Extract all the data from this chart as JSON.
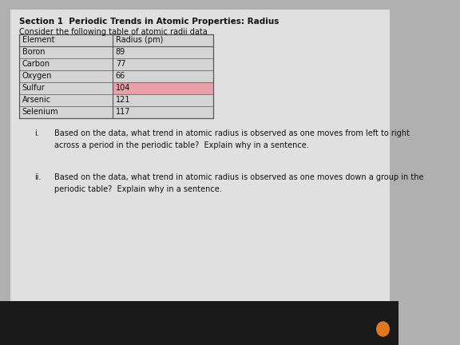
{
  "title": "Section 1  Periodic Trends in Atomic Properties: Radius",
  "subtitle": "Consider the following table of atomic radii data",
  "table_headers": [
    "Element",
    "Radius (pm)"
  ],
  "table_rows": [
    [
      "Boron",
      "89"
    ],
    [
      "Carbon",
      "77"
    ],
    [
      "Oxygen",
      "66"
    ],
    [
      "Sulfur",
      "104"
    ],
    [
      "Arsenic",
      "121"
    ],
    [
      "Selenium",
      "117"
    ]
  ],
  "highlight_row": 3,
  "question_i_label": "i.",
  "question_i_text": "Based on the data, what trend in atomic radius is observed as one moves from left to right\nacross a period in the periodic table?  Explain why in a sentence.",
  "question_ii_label": "ii.",
  "question_ii_text": "Based on the data, what trend in atomic radius is observed as one moves down a group in the\nperiodic table?  Explain why in a sentence.",
  "bg_color": "#b0b0b0",
  "paper_color": "#e0e0e0",
  "table_bg": "#d4d4d4",
  "highlight_color": "#e8a0a8",
  "text_color": "#111111",
  "bottom_color": "#1a1a1a",
  "border_color": "#555555",
  "orange_color": "#e07820"
}
